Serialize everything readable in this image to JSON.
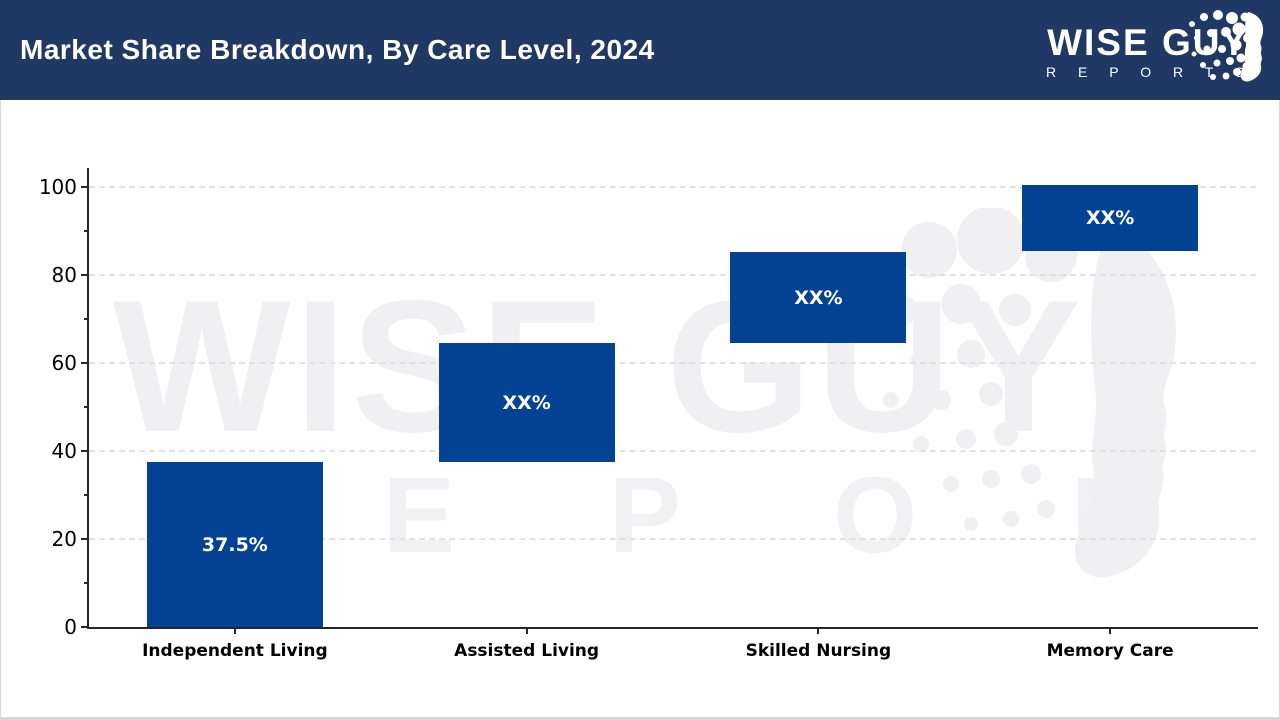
{
  "header": {
    "title": "Market Share Breakdown, By Care Level, 2024",
    "bg_color": "#1f3864",
    "logo": {
      "line1": "WISE GUY",
      "line2": "R E P O R T S"
    }
  },
  "watermark": {
    "line1": "WISE GUY",
    "line2": "R E P O R T S"
  },
  "chart_data": {
    "type": "bar",
    "subtype": "waterfall",
    "title": "Market Share Breakdown, By Care Level, 2024",
    "categories": [
      "Independent Living",
      "Assisted Living",
      "Skilled Nursing",
      "Memory Care"
    ],
    "segments": [
      {
        "category": "Independent Living",
        "start": 0,
        "end": 37.5,
        "label": "37.5%"
      },
      {
        "category": "Assisted Living",
        "start": 37.5,
        "end": 64.5,
        "label": "XX%"
      },
      {
        "category": "Skilled Nursing",
        "start": 64.5,
        "end": 85.2,
        "label": "XX%"
      },
      {
        "category": "Memory Care",
        "start": 85.4,
        "end": 100.4,
        "label": "XX%"
      }
    ],
    "yticks": [
      0,
      20,
      40,
      60,
      80,
      100
    ],
    "ylim": [
      0,
      104
    ],
    "xlabel": "",
    "ylabel": "",
    "legend": "none",
    "grid": "horizontal-dashed",
    "bar_color": "#044294",
    "axis_color": "#262626",
    "grid_color": "#e2e2e2",
    "bar_label_color": "#ffffff"
  }
}
